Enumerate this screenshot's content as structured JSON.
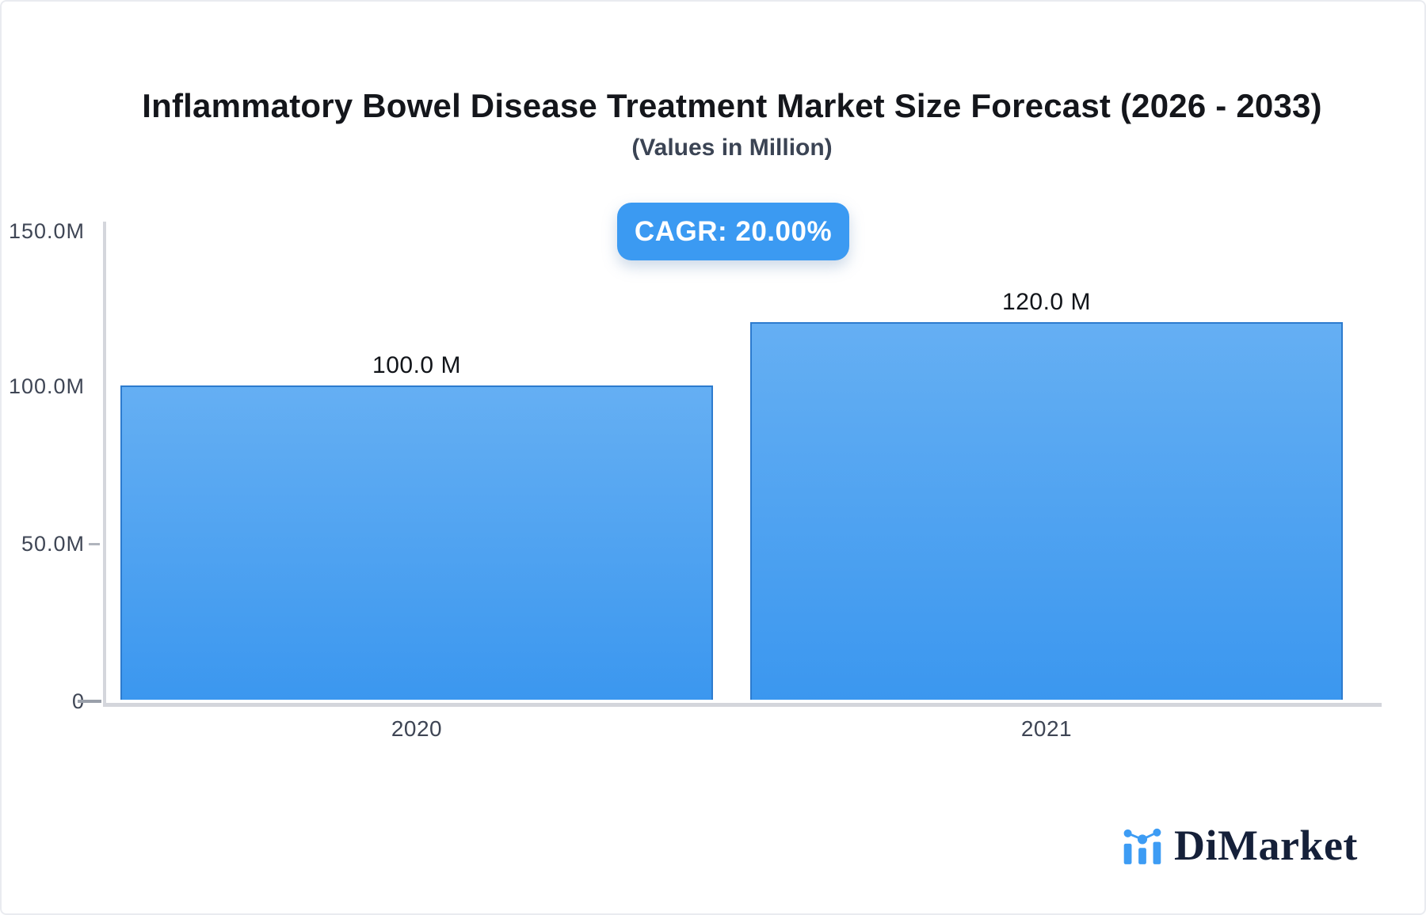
{
  "header": {
    "title": "Inflammatory Bowel Disease Treatment Market Size Forecast (2026 - 2033)",
    "subtitle": "(Values in Million)",
    "cagr_badge": "CAGR: 20.00%"
  },
  "chart_data": {
    "type": "bar",
    "title": "Inflammatory Bowel Disease Treatment Market Size Forecast (2026 - 2033)",
    "subtitle": "(Values in Million)",
    "unit": "Million",
    "cagr_percent": 20.0,
    "categories": [
      "2020",
      "2021"
    ],
    "values": [
      100.0,
      120.0
    ],
    "value_labels": [
      "100.0 M",
      "120.0 M"
    ],
    "ylim": [
      0,
      150
    ],
    "ytick_labels": [
      "150.0M",
      "100.0M",
      "50.0M",
      "0"
    ],
    "grid": false,
    "legend_position": "none",
    "bar_color_top": "#65aff3",
    "bar_color_bottom": "#3b97ef",
    "bar_border_color": "#2d7bce"
  },
  "branding": {
    "logo_text": "DiMarket",
    "logo_icon": "bar-chart-icon",
    "logo_text_color": "#152039",
    "logo_accent_color": "#3d9cf4"
  },
  "colors": {
    "badge_bg": "#3b9af2",
    "badge_text": "#ffffff",
    "axis_line": "#d4d6dc",
    "axis_label_text": "#3f4655",
    "title_text": "#14161b"
  }
}
